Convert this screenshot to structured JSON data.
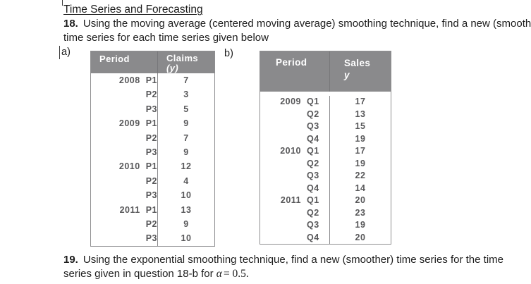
{
  "doc": {
    "title": "Time Series and Forecasting",
    "q18": {
      "number": "18.",
      "line1": "Using the moving average (centered moving average) smoothing technique, find a new (smoother)",
      "line2": "time series for each time series given below"
    },
    "label_a": "a)",
    "label_b": "b)",
    "q19": {
      "number": "19.",
      "line1": "Using the exponential smoothing technique, find a new (smoother) time series for the time",
      "line2_prefix": "series given in question 18-b for ",
      "alpha_symbol": "α",
      "alpha_rest": "= 0.5."
    }
  },
  "table_a": {
    "header": {
      "period": "Period",
      "value_line1": "Claims",
      "value_line2": "(y)"
    },
    "rows": [
      {
        "year": "2008",
        "p": "P1",
        "v": "7"
      },
      {
        "year": "",
        "p": "P2",
        "v": "3"
      },
      {
        "year": "",
        "p": "P3",
        "v": "5"
      },
      {
        "year": "2009",
        "p": "P1",
        "v": "9"
      },
      {
        "year": "",
        "p": "P2",
        "v": "7"
      },
      {
        "year": "",
        "p": "P3",
        "v": "9"
      },
      {
        "year": "2010",
        "p": "P1",
        "v": "12"
      },
      {
        "year": "",
        "p": "P2",
        "v": "4"
      },
      {
        "year": "",
        "p": "P3",
        "v": "10"
      },
      {
        "year": "2011",
        "p": "P1",
        "v": "13"
      },
      {
        "year": "",
        "p": "P2",
        "v": "9"
      },
      {
        "year": "",
        "p": "P3",
        "v": "10"
      }
    ]
  },
  "table_b": {
    "header": {
      "period": "Period",
      "value_line1": "Sales",
      "value_line2": "y"
    },
    "rows": [
      {
        "year": "2009",
        "p": "Q1",
        "v": "17"
      },
      {
        "year": "",
        "p": "Q2",
        "v": "13"
      },
      {
        "year": "",
        "p": "Q3",
        "v": "15"
      },
      {
        "year": "",
        "p": "Q4",
        "v": "19"
      },
      {
        "year": "2010",
        "p": "Q1",
        "v": "17"
      },
      {
        "year": "",
        "p": "Q2",
        "v": "19"
      },
      {
        "year": "",
        "p": "Q3",
        "v": "22"
      },
      {
        "year": "",
        "p": "Q4",
        "v": "14"
      },
      {
        "year": "2011",
        "p": "Q1",
        "v": "20"
      },
      {
        "year": "",
        "p": "Q2",
        "v": "23"
      },
      {
        "year": "",
        "p": "Q3",
        "v": "19"
      },
      {
        "year": "",
        "p": "Q4",
        "v": "20"
      }
    ]
  },
  "colors": {
    "header_bg": "#8a8a8c",
    "header_text": "#ffffff",
    "table_text": "#58585a",
    "body_text": "#1d1d1d",
    "border": "#8e8e90"
  }
}
